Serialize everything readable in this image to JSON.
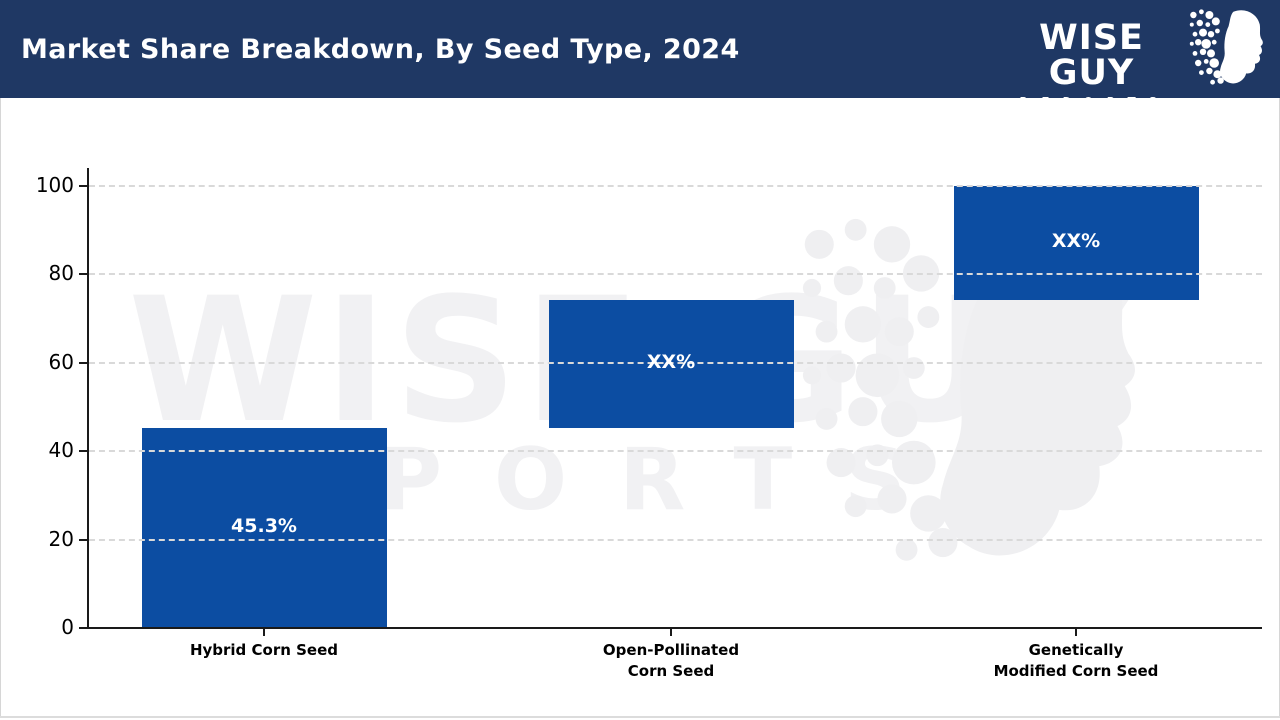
{
  "header": {
    "title": "Market Share Breakdown, By Seed Type, 2024",
    "bg_color": "#1f3864",
    "logo": {
      "wordmark": "WISE GUY",
      "subtitle": "REPORTS",
      "icon": "dotted-face-profile"
    }
  },
  "watermark": {
    "text_top": "WISE GUY",
    "text_bottom": "REPORTS"
  },
  "chart_data": {
    "type": "bar",
    "subtype": "floating-waterfall",
    "title": "Market Share Breakdown, By Seed Type, 2024",
    "categories": [
      "Hybrid Corn Seed",
      "Open-Pollinated\nCorn Seed",
      "Genetically\nModified Corn Seed"
    ],
    "segments": [
      {
        "category": "Hybrid Corn Seed",
        "start": 0,
        "end": 45.3,
        "label": "45.3%"
      },
      {
        "category": "Open-Pollinated Corn Seed",
        "start": 45.3,
        "end": 74.2,
        "label": "XX%"
      },
      {
        "category": "Genetically Modified Corn Seed",
        "start": 74.2,
        "end": 100,
        "label": "XX%"
      }
    ],
    "ylim": [
      0,
      100
    ],
    "yticks": [
      0,
      20,
      40,
      60,
      80,
      100
    ],
    "grid": "horizontal-dashed",
    "legend": "none",
    "bar_color": "#0c4da2",
    "bar_label_color": "#ffffff",
    "axis_color": "#1a1a1a"
  }
}
